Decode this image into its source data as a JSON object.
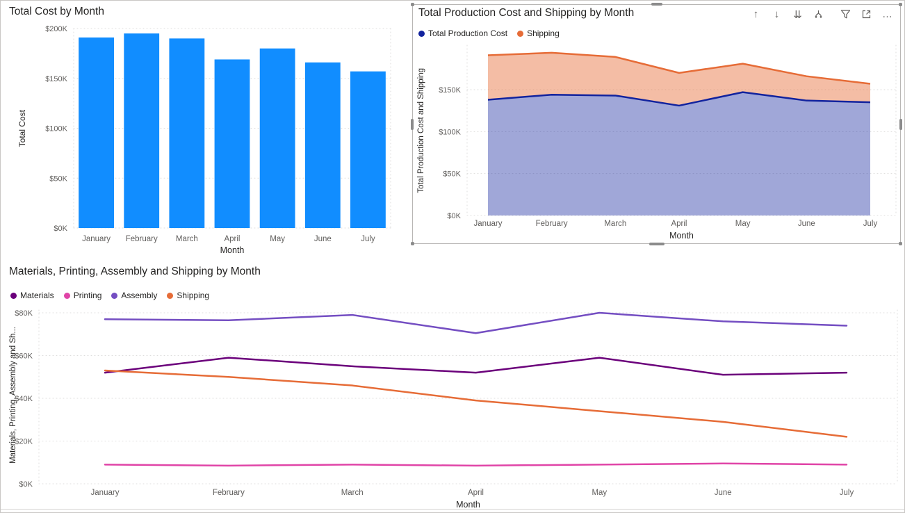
{
  "canvas": {
    "background": "#FFFFFF",
    "border_color": "#C9C7C5"
  },
  "colors": {
    "title_text": "#252423",
    "axis_text": "#605E5C",
    "gridline": "#DEDDDC",
    "bar": "#118DFF",
    "production": "#12239E",
    "shipping": "#E66C37",
    "materials": "#6B007B",
    "printing": "#E044A7",
    "assembly": "#744EC2",
    "selection_border": "#B9B7B5",
    "handle": "#8B8B8B",
    "header_icon": "#605E5C"
  },
  "visual2": {
    "selected": true,
    "header": {
      "icons": [
        {
          "name": "drill-up-icon",
          "glyph": "↑"
        },
        {
          "name": "drill-down-icon",
          "glyph": "↓"
        },
        {
          "name": "go-to-next-level-icon",
          "glyph": "⇊"
        },
        {
          "name": "expand-all-icon",
          "glyph": ""
        },
        {
          "name": "filter-icon",
          "glyph": ""
        },
        {
          "name": "focus-mode-icon",
          "glyph": ""
        },
        {
          "name": "more-options-icon",
          "glyph": "…"
        }
      ]
    }
  },
  "chart_data": [
    {
      "type": "bar",
      "title": "Total Cost by Month",
      "xlabel": "Month",
      "ylabel": "Total Cost",
      "unit": "$K",
      "categories": [
        "January",
        "February",
        "March",
        "April",
        "May",
        "June",
        "July"
      ],
      "values": [
        191,
        195,
        190,
        169,
        180,
        166,
        157
      ],
      "ylim": [
        0,
        200
      ],
      "yticks": [
        0,
        50,
        100,
        150,
        200
      ],
      "ytick_labels": [
        "$0K",
        "$50K",
        "$100K",
        "$150K",
        "$200K"
      ],
      "bar_color": "#118DFF",
      "grid": true,
      "legend_position": "none"
    },
    {
      "type": "area",
      "stacked": true,
      "title": "Total Production Cost and Shipping by Month",
      "xlabel": "Month",
      "ylabel": "Total Production Cost and Shipping",
      "unit": "$K",
      "categories": [
        "January",
        "February",
        "March",
        "April",
        "May",
        "June",
        "July"
      ],
      "series": [
        {
          "name": "Total Production Cost",
          "color": "#12239E",
          "values": [
            138,
            144,
            143,
            131,
            147,
            137,
            135
          ]
        },
        {
          "name": "Shipping",
          "color": "#E66C37",
          "values": [
            53,
            50,
            46,
            39,
            34,
            29,
            22
          ]
        }
      ],
      "ylim": [
        0,
        205
      ],
      "yticks": [
        0,
        50,
        100,
        150
      ],
      "ytick_labels": [
        "$0K",
        "$50K",
        "$100K",
        "$150K"
      ],
      "grid": true,
      "legend_position": "top-left"
    },
    {
      "type": "line",
      "title": "Materials, Printing, Assembly and Shipping by Month",
      "xlabel": "Month",
      "ylabel": "Materials, Printing, Assembly and Sh...",
      "unit": "$K",
      "categories": [
        "January",
        "February",
        "March",
        "April",
        "May",
        "June",
        "July"
      ],
      "series": [
        {
          "name": "Materials",
          "color": "#6B007B",
          "values": [
            52,
            59,
            55,
            52,
            59,
            51,
            52
          ]
        },
        {
          "name": "Printing",
          "color": "#E044A7",
          "values": [
            9,
            8.5,
            9,
            8.5,
            9,
            9.5,
            9
          ]
        },
        {
          "name": "Assembly",
          "color": "#744EC2",
          "values": [
            77,
            76.5,
            79,
            70.5,
            80,
            76,
            74
          ]
        },
        {
          "name": "Shipping",
          "color": "#E66C37",
          "values": [
            53,
            50,
            46,
            39,
            34,
            29,
            22
          ]
        }
      ],
      "ylim": [
        0,
        84
      ],
      "yticks": [
        0,
        20,
        40,
        60,
        80
      ],
      "ytick_labels": [
        "$0K",
        "$20K",
        "$40K",
        "$60K",
        "$80K"
      ],
      "grid": true,
      "legend_position": "top-left"
    }
  ]
}
